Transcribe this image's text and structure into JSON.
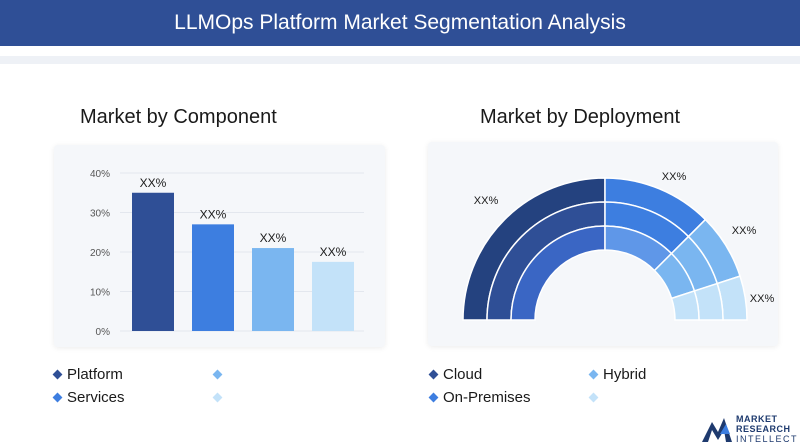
{
  "header": {
    "title": "LLMOps Platform Market Segmentation Analysis"
  },
  "component_section": {
    "title": "Market by Component"
  },
  "deployment_section": {
    "title": "Market by Deployment"
  },
  "chart_data": [
    {
      "type": "bar",
      "title": "Market by Component",
      "categories": [
        "Platform",
        "Services",
        "",
        ""
      ],
      "values": [
        35,
        27,
        21,
        17.5
      ],
      "data_labels": [
        "XX%",
        "XX%",
        "XX%",
        "XX%"
      ],
      "ylim": [
        0,
        40
      ],
      "yticks": [
        "0%",
        "10%",
        "20%",
        "30%",
        "40%"
      ],
      "colors": [
        "#2f4f96",
        "#3d7ee0",
        "#7ab6f0",
        "#c3e2f9"
      ],
      "grid": true
    },
    {
      "type": "pie",
      "title": "Market by Deployment",
      "categories": [
        "Cloud",
        "On-Premises",
        "Hybrid",
        ""
      ],
      "values": [
        50,
        25,
        15,
        10
      ],
      "data_labels": [
        "XX%",
        "XX%",
        "XX%",
        "XX%"
      ],
      "colors": [
        "#2f4f96",
        "#3d7ee0",
        "#7ab6f0",
        "#c3e2f9"
      ]
    }
  ],
  "legend_component": [
    {
      "label": "Platform",
      "color": "#2f4f96"
    },
    {
      "label": "",
      "color": "#7ab6f0"
    },
    {
      "label": "Services",
      "color": "#3d7ee0"
    },
    {
      "label": "",
      "color": "#c3e2f9"
    }
  ],
  "legend_deployment": [
    {
      "label": "Cloud",
      "color": "#2f4f96"
    },
    {
      "label": "Hybrid",
      "color": "#7ab6f0"
    },
    {
      "label": "On-Premises",
      "color": "#3d7ee0"
    },
    {
      "label": "",
      "color": "#c3e2f9"
    }
  ],
  "logo": {
    "line1": "MARKET",
    "line2": "RESEARCH",
    "line3": "INTELLECT"
  }
}
